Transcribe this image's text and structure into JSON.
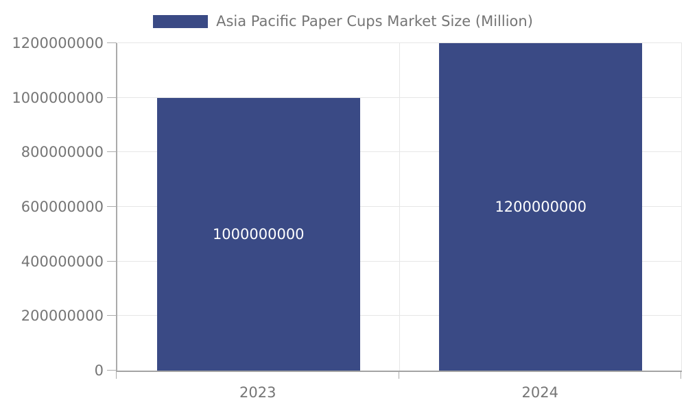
{
  "chart_data": {
    "type": "bar",
    "title": "",
    "xlabel": "",
    "ylabel": "",
    "legend": {
      "label": "Asia Pacific Paper Cups Market Size (Million)",
      "position": "top"
    },
    "categories": [
      "2023",
      "2024"
    ],
    "series": [
      {
        "name": "Asia Pacific Paper Cups Market Size (Million)",
        "values": [
          1000000000,
          1200000000
        ]
      }
    ],
    "data_labels": [
      "1000000000",
      "1200000000"
    ],
    "yticks": [
      0,
      200000000,
      400000000,
      600000000,
      800000000,
      1000000000,
      1200000000
    ],
    "ytick_labels": [
      "0",
      "200000000",
      "400000000",
      "600000000",
      "800000000",
      "1000000000",
      "1200000000"
    ],
    "ylim": [
      0,
      1200000000
    ],
    "grid": true,
    "colors": {
      "bar": "#3a4a85",
      "axis_text": "#757575",
      "legend_text": "#757575",
      "bar_label_text": "#ffffff",
      "gridline": "#e6e6e6",
      "axis_line": "#a6a6a6",
      "background": "#ffffff"
    }
  }
}
